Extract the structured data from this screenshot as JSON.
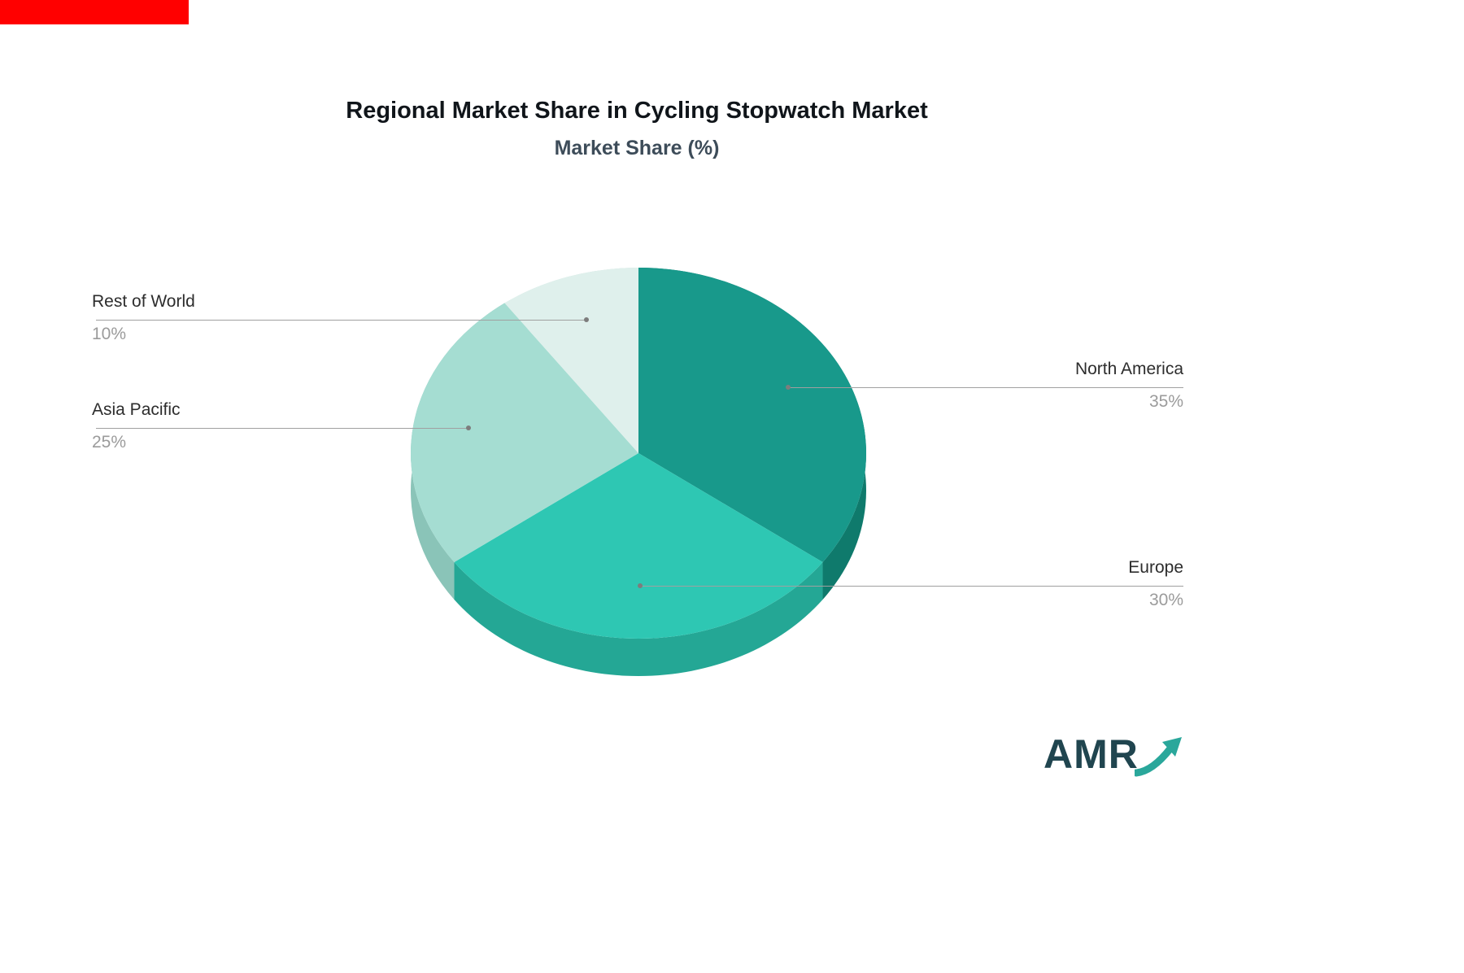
{
  "top_bar": {
    "color": "#ff0000"
  },
  "header": {
    "title": "Regional Market Share in Cycling Stopwatch Market",
    "subtitle": "Market Share (%)"
  },
  "chart_data": {
    "type": "pie",
    "title": "Regional Market Share in Cycling Stopwatch Market",
    "subtitle": "Market Share (%)",
    "unit": "%",
    "style": "3d-pie",
    "start_angle_deg": 0,
    "direction": "clockwise",
    "slices": [
      {
        "label": "North America",
        "value": 35,
        "pct_label": "35%",
        "color": "#18998b",
        "dark_color": "#0f7a6c"
      },
      {
        "label": "Europe",
        "value": 30,
        "pct_label": "30%",
        "color": "#2ec7b3",
        "dark_color": "#24a795"
      },
      {
        "label": "Asia Pacific",
        "value": 25,
        "pct_label": "25%",
        "color": "#a5ddd2",
        "dark_color": "#8ac4b8"
      },
      {
        "label": "Rest of World",
        "value": 10,
        "pct_label": "10%",
        "color": "#dff0ec",
        "dark_color": "#c2dcd6"
      }
    ]
  },
  "logo": {
    "text": "AMR",
    "text_color": "#20454f",
    "arrow_color": "#2aa79b"
  }
}
